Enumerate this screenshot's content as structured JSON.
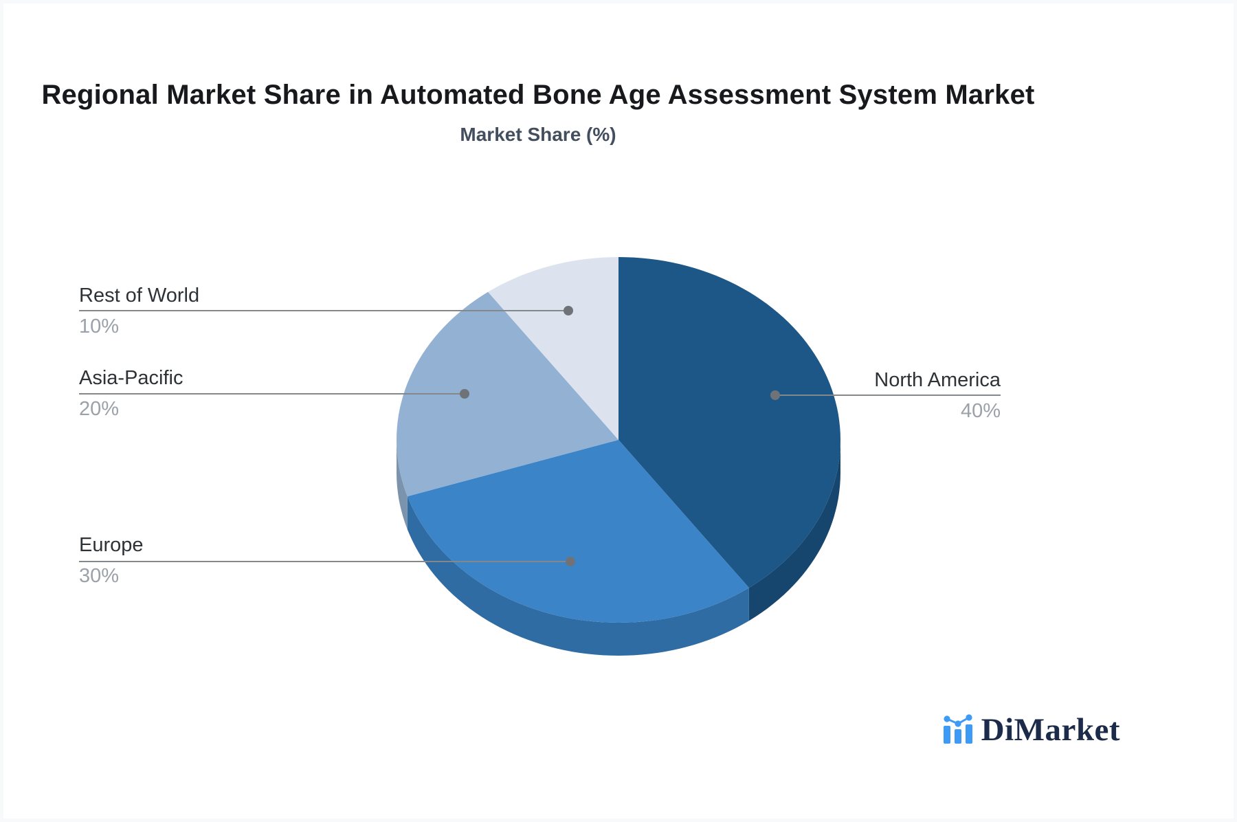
{
  "title": "Regional Market Share in Automated Bone Age Assessment System Market",
  "subtitle": "Market Share (%)",
  "brand": {
    "name": "DiMarket",
    "icon": "bar-line-chart-icon",
    "icon_color": "#3d9bf5",
    "text_color": "#1c2b4a"
  },
  "chart_data": {
    "type": "pie",
    "style": "3d-pie",
    "title": "Regional Market Share in Automated Bone Age Assessment System Market",
    "subtitle": "Market Share (%)",
    "unit": "%",
    "direction": "clockwise",
    "start_angle_deg_from_top": 0,
    "legend_position": "none",
    "labels_style": "leader-lines",
    "leader_line_color": "#85888a",
    "leader_dot_color": "#6f7377",
    "slices": [
      {
        "label": "North America",
        "value": 40,
        "value_text": "40%",
        "color": "#1d5787",
        "side_color": "#16466d"
      },
      {
        "label": "Europe",
        "value": 30,
        "value_text": "30%",
        "color": "#3b84c7",
        "side_color": "#2f6ca3"
      },
      {
        "label": "Asia-Pacific",
        "value": 20,
        "value_text": "20%",
        "color": "#92b1d3",
        "side_color": "#7c93ad"
      },
      {
        "label": "Rest of World",
        "value": 10,
        "value_text": "10%",
        "color": "#dce3ee",
        "side_color": "#b9c2d1"
      }
    ]
  }
}
